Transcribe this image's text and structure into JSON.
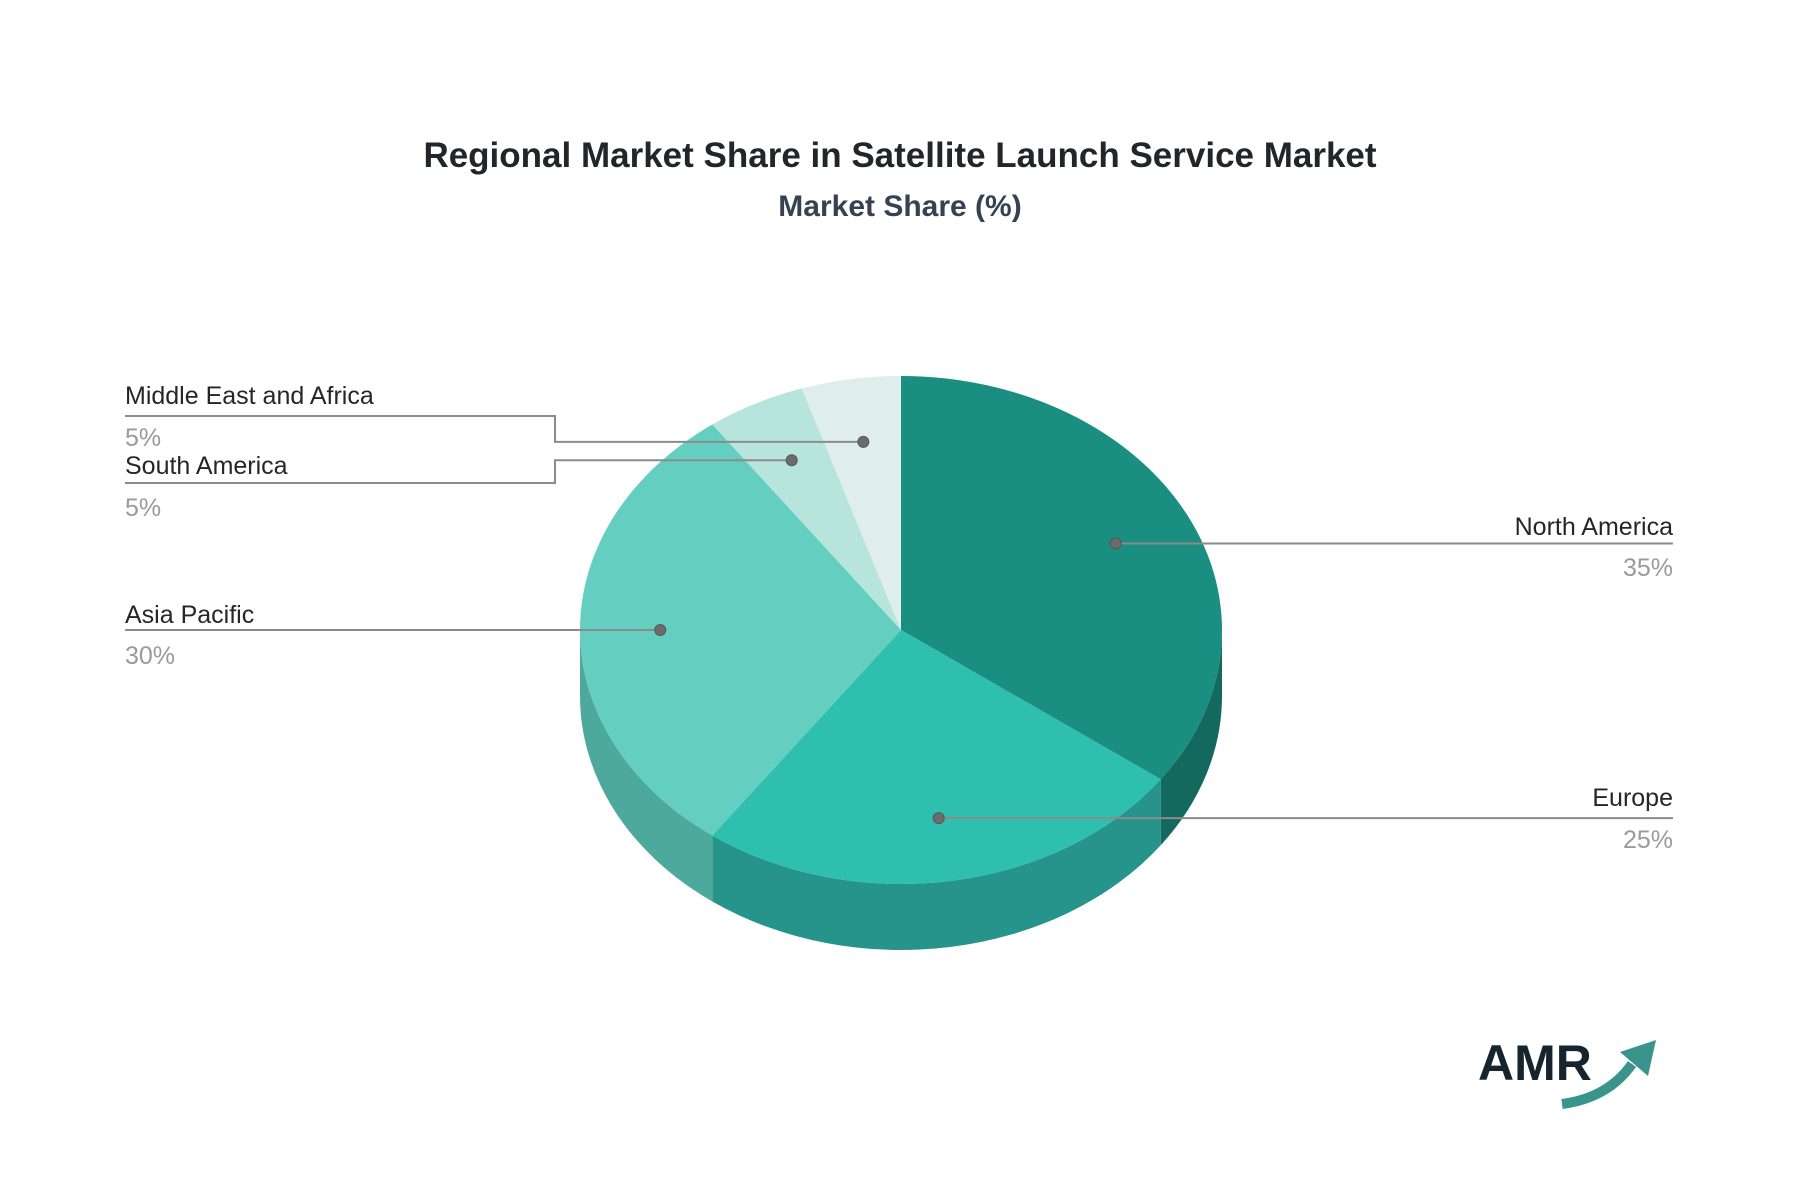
{
  "chart_data": {
    "type": "pie",
    "title": "Regional Market Share in Satellite Launch Service Market",
    "subtitle": "Market Share (%)",
    "series_name": "Market Share (%)",
    "unit": "%",
    "start_angle_deg": 0,
    "direction": "clockwise",
    "style": "3d-pie",
    "background": "#ffffff",
    "label_color": "#262626",
    "value_color": "#9a9a9a",
    "leader_line_color": "#8b8b8b",
    "slices": [
      {
        "label": "North America",
        "value": 35,
        "pct_label": "35%",
        "color": "#1a8e80",
        "rim_color": "#14695f"
      },
      {
        "label": "Europe",
        "value": 25,
        "pct_label": "25%",
        "color": "#2ebfae",
        "rim_color": "#27948b"
      },
      {
        "label": "Asia Pacific",
        "value": 30,
        "pct_label": "30%",
        "color": "#64cfc1",
        "rim_color": "#4ca99c"
      },
      {
        "label": "South America",
        "value": 5,
        "pct_label": "5%",
        "color": "#b7e4db",
        "rim_color": "#9ccdc3"
      },
      {
        "label": "Middle East and Africa",
        "value": 5,
        "pct_label": "5%",
        "color": "#e0eeeb",
        "rim_color": "#c2d8d3"
      }
    ]
  },
  "logo": {
    "text": "AMR",
    "color": "#16242e",
    "arrow_color": "#39958c"
  }
}
